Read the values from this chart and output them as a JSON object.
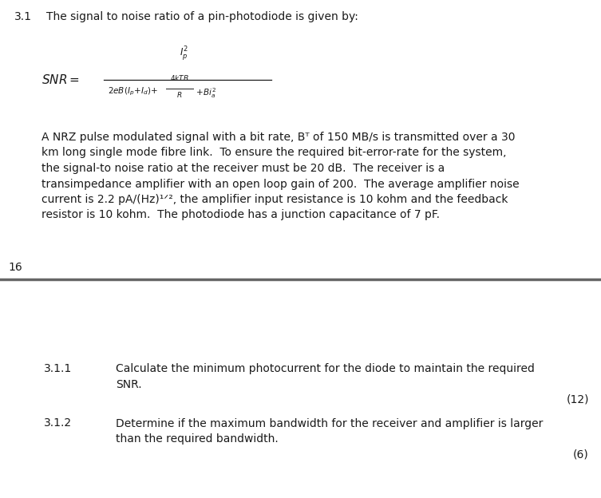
{
  "bg_color": "#ffffff",
  "text_color": "#1a1a1a",
  "section_number": "3.1",
  "section_title": "The signal to noise ratio of a pin-photodiode is given by:",
  "marks_top": "16",
  "sub_q1_num": "3.1.1",
  "sub_q1_line1": "Calculate the minimum photocurrent for the diode to maintain the required",
  "sub_q1_line2": "SNR.",
  "sub_q1_marks": "(12)",
  "sub_q2_num": "3.1.2",
  "sub_q2_line1": "Determine if the maximum bandwidth for the receiver and amplifier is larger",
  "sub_q2_line2": "than the required bandwidth.",
  "sub_q2_marks": "(6)",
  "para_line1": "A NRZ pulse modulated signal with a bit rate, Bᵀ of 150 MB/s is transmitted over a 30",
  "para_line2": "km long single mode fibre link.  To ensure the required bit-error-rate for the system,",
  "para_line3": "the signal-to noise ratio at the receiver must be 20 dB.  The receiver is a",
  "para_line4": "transimpedance amplifier with an open loop gain of 200.  The average amplifier noise",
  "para_line5": "current is 2.2 pA/(Hz)¹ᐟ², the amplifier input resistance is 10 kohm and the feedback",
  "para_line6": "resistor is 10 kohm.  The photodiode has a junction capacitance of 7 pF.",
  "divider_color": "#666666",
  "font_name": "DejaVu Sans",
  "dpi": 100,
  "fig_w": 7.53,
  "fig_h": 6.24
}
